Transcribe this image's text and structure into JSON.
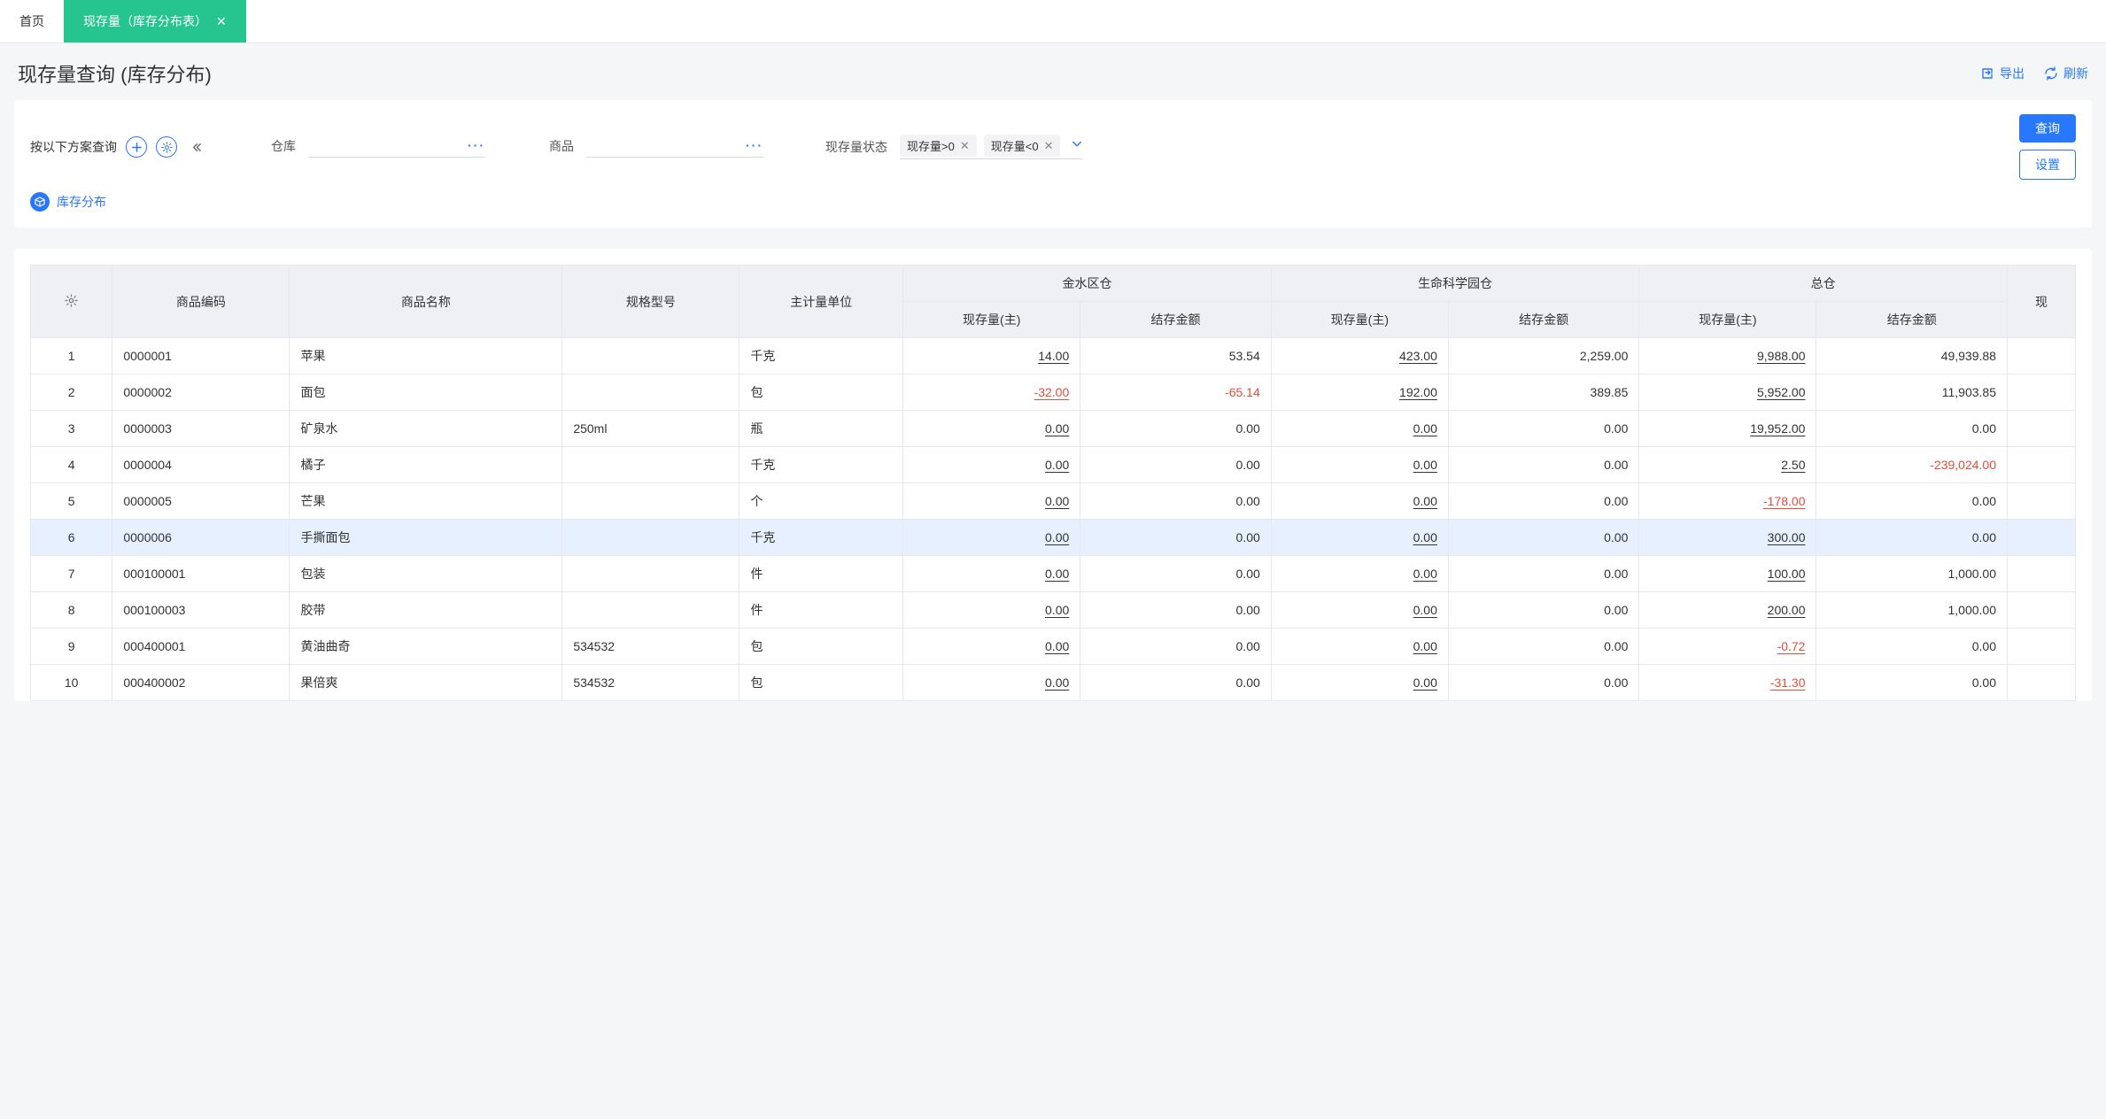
{
  "tabs": {
    "home": "首页",
    "active": "现存量（库存分布表）"
  },
  "page": {
    "title": "现存量查询 (库存分布)",
    "export": "导出",
    "refresh": "刷新"
  },
  "filter": {
    "schemeLabel": "按以下方案查询",
    "subLabel": "库存分布",
    "warehouse": {
      "label": "仓库"
    },
    "product": {
      "label": "商品"
    },
    "status": {
      "label": "现存量状态",
      "chips": [
        "现存量>0",
        "现存量<0"
      ]
    },
    "queryBtn": "查询",
    "settingsBtn": "设置"
  },
  "table": {
    "columns": {
      "idx": "",
      "code": "商品编码",
      "name": "商品名称",
      "spec": "规格型号",
      "unit": "主计量单位",
      "groups": [
        "金水区仓",
        "生命科学园仓",
        "总仓"
      ],
      "sub": {
        "qty": "现存量(主)",
        "amt": "结存金额"
      },
      "tail": "现"
    },
    "highlightRow": 5,
    "rows": [
      {
        "idx": "1",
        "code": "0000001",
        "name": "苹果",
        "spec": "",
        "unit": "千克",
        "g": [
          {
            "q": "14.00",
            "a": "53.54"
          },
          {
            "q": "423.00",
            "a": "2,259.00"
          },
          {
            "q": "9,988.00",
            "a": "49,939.88"
          }
        ]
      },
      {
        "idx": "2",
        "code": "0000002",
        "name": "面包",
        "spec": "",
        "unit": "包",
        "g": [
          {
            "q": "-32.00",
            "qneg": true,
            "a": "-65.14",
            "aneg": true
          },
          {
            "q": "192.00",
            "a": "389.85"
          },
          {
            "q": "5,952.00",
            "a": "11,903.85"
          }
        ]
      },
      {
        "idx": "3",
        "code": "0000003",
        "name": "矿泉水",
        "spec": "250ml",
        "unit": "瓶",
        "g": [
          {
            "q": "0.00",
            "a": "0.00"
          },
          {
            "q": "0.00",
            "a": "0.00"
          },
          {
            "q": "19,952.00",
            "a": "0.00"
          }
        ]
      },
      {
        "idx": "4",
        "code": "0000004",
        "name": "橘子",
        "spec": "",
        "unit": "千克",
        "g": [
          {
            "q": "0.00",
            "a": "0.00"
          },
          {
            "q": "0.00",
            "a": "0.00"
          },
          {
            "q": "2.50",
            "a": "-239,024.00",
            "aneg": true
          }
        ]
      },
      {
        "idx": "5",
        "code": "0000005",
        "name": "芒果",
        "spec": "",
        "unit": "个",
        "g": [
          {
            "q": "0.00",
            "a": "0.00"
          },
          {
            "q": "0.00",
            "a": "0.00"
          },
          {
            "q": "-178.00",
            "qneg": true,
            "a": "0.00"
          }
        ]
      },
      {
        "idx": "6",
        "code": "0000006",
        "name": "手撕面包",
        "spec": "",
        "unit": "千克",
        "g": [
          {
            "q": "0.00",
            "a": "0.00"
          },
          {
            "q": "0.00",
            "a": "0.00"
          },
          {
            "q": "300.00",
            "a": "0.00"
          }
        ]
      },
      {
        "idx": "7",
        "code": "000100001",
        "name": "包装",
        "spec": "",
        "unit": "件",
        "g": [
          {
            "q": "0.00",
            "a": "0.00"
          },
          {
            "q": "0.00",
            "a": "0.00"
          },
          {
            "q": "100.00",
            "a": "1,000.00"
          }
        ]
      },
      {
        "idx": "8",
        "code": "000100003",
        "name": "胶带",
        "spec": "",
        "unit": "件",
        "g": [
          {
            "q": "0.00",
            "a": "0.00"
          },
          {
            "q": "0.00",
            "a": "0.00"
          },
          {
            "q": "200.00",
            "a": "1,000.00"
          }
        ]
      },
      {
        "idx": "9",
        "code": "000400001",
        "name": "黄油曲奇",
        "spec": "534532",
        "unit": "包",
        "g": [
          {
            "q": "0.00",
            "a": "0.00"
          },
          {
            "q": "0.00",
            "a": "0.00"
          },
          {
            "q": "-0.72",
            "qneg": true,
            "a": "0.00"
          }
        ]
      },
      {
        "idx": "10",
        "code": "000400002",
        "name": "果倍爽",
        "spec": "534532",
        "unit": "包",
        "g": [
          {
            "q": "0.00",
            "a": "0.00"
          },
          {
            "q": "0.00",
            "a": "0.00"
          },
          {
            "q": "-31.30",
            "qneg": true,
            "a": "0.00"
          }
        ]
      }
    ]
  },
  "colors": {
    "accent": "#2878ff",
    "tabActive": "#26c48e",
    "neg": "#e74c3c",
    "thBg": "#eef0f4",
    "border": "#e6e8ec",
    "rowHl": "#e6f0ff",
    "bg": "#f5f6f8"
  }
}
